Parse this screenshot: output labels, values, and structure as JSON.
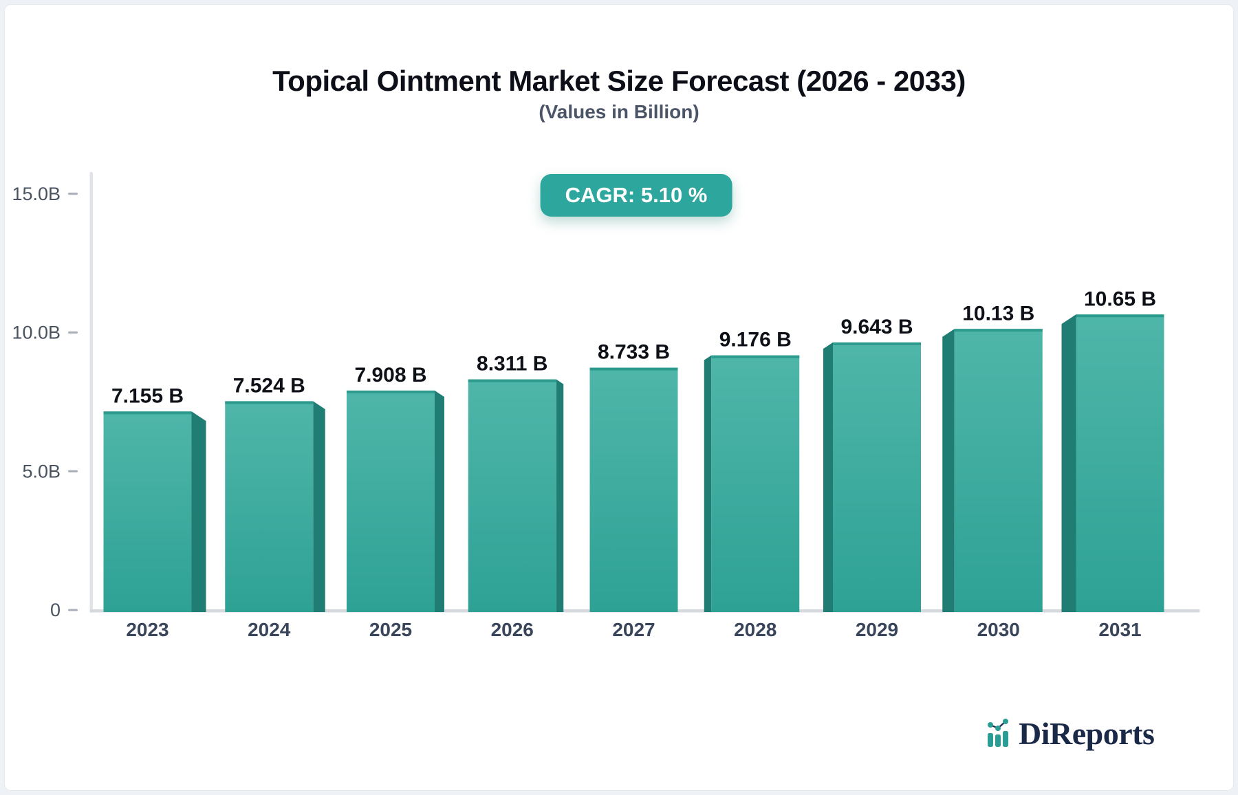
{
  "page": {
    "title": "Topical Ointment Market Size Forecast (2026 - 2033)",
    "subtitle": "(Values in Billion)",
    "cagr_badge": "CAGR: 5.10 %",
    "brand": {
      "name": "DiReports",
      "icon": "mini-bar-chart-icon"
    }
  },
  "colors": {
    "bar_face_top": "#4FB6A9",
    "bar_face_bottom": "#2EA195",
    "bar_side": "#1F7D73",
    "bar_top_rim": "#2D9A8E",
    "badge_bg": "#2DA79E",
    "badge_text": "#FFFFFF",
    "y_axis_line": "#E0E3E8",
    "x_axis_line": "#D6DADF",
    "tick_mark": "#A7AEB8",
    "tick_text": "#49535F",
    "year_text": "#39455A",
    "value_text": "#0D1117",
    "title_text": "#0C0F17",
    "subtitle_text": "#4A5466",
    "logo_navy": "#1A2947",
    "logo_teal": "#2A9D95",
    "card_bg": "#FFFFFF",
    "page_bg": "#EEF1F5"
  },
  "chart_data": {
    "type": "bar",
    "title": "Topical Ointment Market Size Forecast (2026 - 2033)",
    "subtitle": "(Values in Billion)",
    "annotation": "CAGR: 5.10 %",
    "categories": [
      "2023",
      "2024",
      "2025",
      "2026",
      "2027",
      "2028",
      "2029",
      "2030",
      "2031"
    ],
    "values": [
      7.155,
      7.524,
      7.908,
      8.311,
      8.733,
      9.176,
      9.643,
      10.13,
      10.65
    ],
    "bar_labels": [
      "7.155 B",
      "7.524 B",
      "7.908 B",
      "8.311 B",
      "8.733 B",
      "9.176 B",
      "9.643 B",
      "10.13 B",
      "10.65 B"
    ],
    "xlabel": "",
    "ylabel": "",
    "y_ticks": [
      "0",
      "5.0B",
      "10.0B",
      "15.0B"
    ],
    "y_tick_values": [
      0,
      5,
      10,
      15
    ],
    "ylim": [
      0,
      15
    ],
    "grid": false,
    "legend": false,
    "style": "3d-extruded-bars",
    "units": "Billion"
  }
}
